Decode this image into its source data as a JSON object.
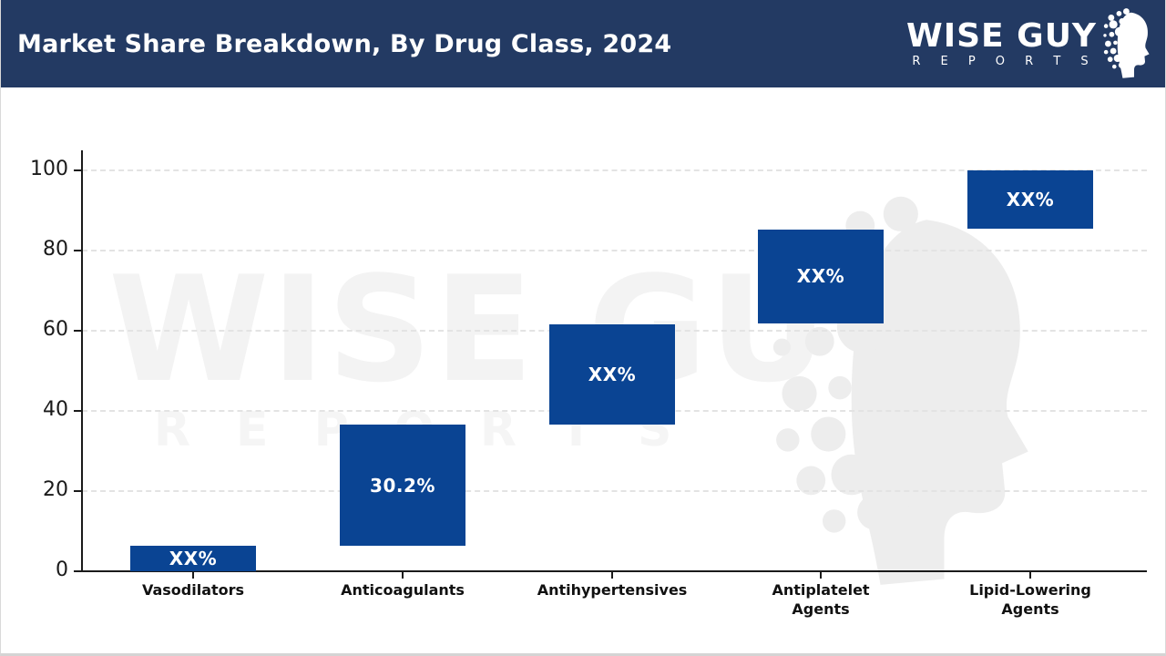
{
  "header": {
    "title": "Market Share Breakdown, By Drug Class, 2024",
    "brand": {
      "line1": "WISE GUY",
      "line2": "R E P O R T S"
    }
  },
  "watermark": {
    "line1": "WISE GUY",
    "line2": "REPORTS"
  },
  "colors": {
    "header_bg": "#233a63",
    "bar": "#0a4493",
    "bar_label": "#ffffff",
    "gridline": "#e3e3e3",
    "axis": "#1a1a1a",
    "watermark": "#f3f3f3"
  },
  "chart_data": {
    "type": "bar",
    "subtype": "waterfall-floating-bars",
    "title": "Market Share Breakdown, By Drug Class, 2024",
    "categories": [
      "Vasodilators",
      "Anticoagulants",
      "Antihypertensives",
      "Antiplatelet\nAgents",
      "Lipid-Lowering\nAgents"
    ],
    "segments": [
      {
        "category": "Vasodilators",
        "start": 0,
        "end": 6.3,
        "value_label": "XX%"
      },
      {
        "category": "Anticoagulants",
        "start": 6.3,
        "end": 36.5,
        "value": 30.2,
        "value_label": "30.2%"
      },
      {
        "category": "Antihypertensives",
        "start": 36.5,
        "end": 61.5,
        "value_label": "XX%"
      },
      {
        "category": "Antiplatelet Agents",
        "start": 61.8,
        "end": 85.3,
        "value_label": "XX%"
      },
      {
        "category": "Lipid-Lowering Agents",
        "start": 85.5,
        "end": 100,
        "value_label": "XX%"
      }
    ],
    "yticks": [
      0,
      20,
      40,
      60,
      80,
      100
    ],
    "ylim": [
      0,
      105
    ],
    "xlabel": "",
    "ylabel": "",
    "legend": "none",
    "grid": {
      "axis": "y",
      "style": "dashed"
    }
  }
}
